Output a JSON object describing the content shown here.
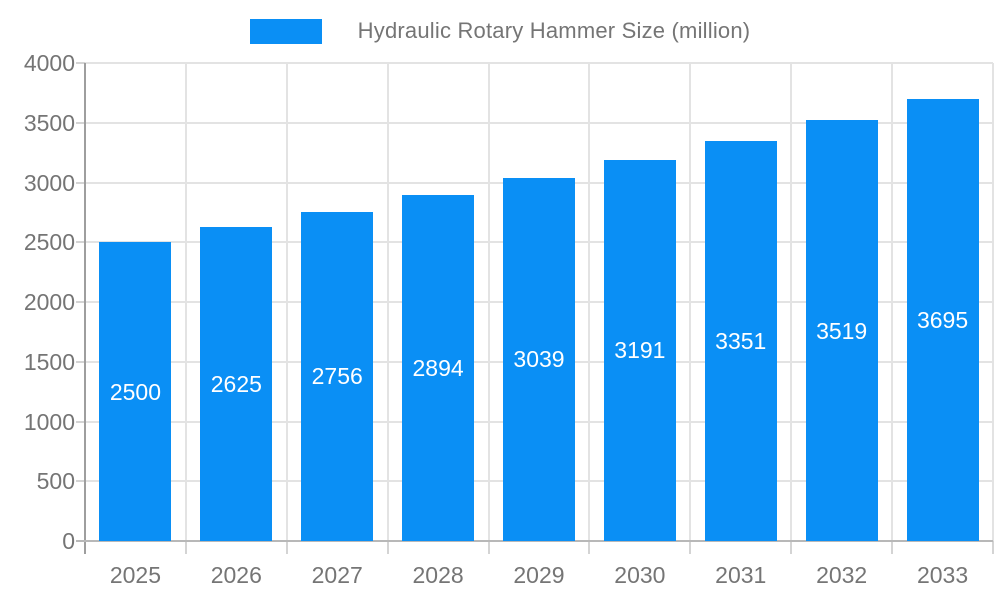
{
  "legend": {
    "label": "Hydraulic Rotary Hammer Size (million)"
  },
  "colors": {
    "bar": "#0a8ff5",
    "bar_label": "#ffffff",
    "axis_text": "#757575",
    "gridline": "#e3e3e3",
    "axis_line": "#9e9e9e",
    "baseline": "#b8b8b8",
    "tick": "#d4d4d4"
  },
  "chart_data": {
    "type": "bar",
    "title": "Hydraulic Rotary Hammer Size (million)",
    "categories": [
      "2025",
      "2026",
      "2027",
      "2028",
      "2029",
      "2030",
      "2031",
      "2032",
      "2033"
    ],
    "series": [
      {
        "name": "Hydraulic Rotary Hammer Size (million)",
        "values": [
          2500,
          2625,
          2756,
          2894,
          3039,
          3191,
          3351,
          3519,
          3695
        ]
      }
    ],
    "data_labels": [
      "2500",
      "2625",
      "2756",
      "2894",
      "3039",
      "3191",
      "3351",
      "3519",
      "3695"
    ],
    "xlabel": "",
    "ylabel": "",
    "ylim": [
      0,
      4000
    ],
    "yticks": [
      0,
      500,
      1000,
      1500,
      2000,
      2500,
      3000,
      3500,
      4000
    ],
    "grid": true,
    "legend_position": "top-center",
    "bar_color": "#0a8ff5",
    "value_labels_inside_bars": true
  }
}
